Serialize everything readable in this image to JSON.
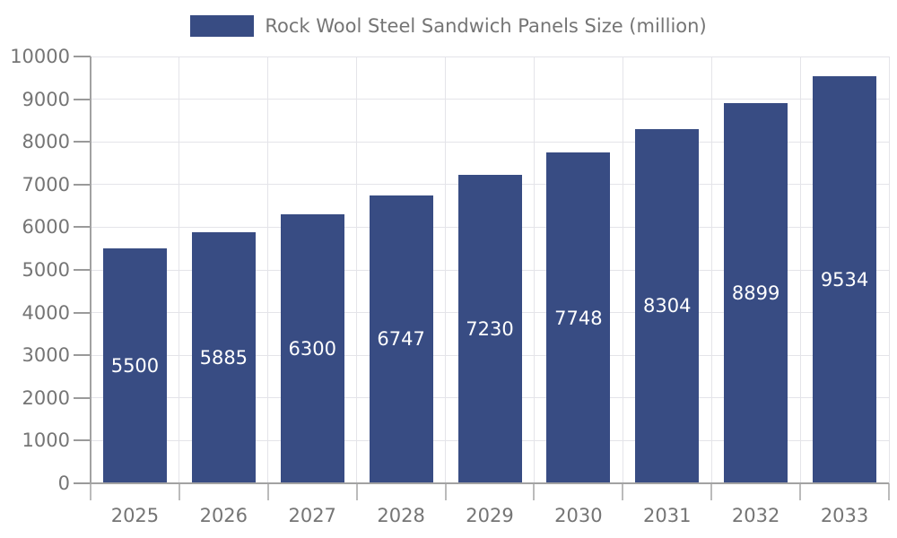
{
  "chart_data": {
    "type": "bar",
    "title": "",
    "legend_label": "Rock Wool Steel Sandwich Panels Size (million)",
    "legend_position": "top",
    "categories": [
      "2025",
      "2026",
      "2027",
      "2028",
      "2029",
      "2030",
      "2031",
      "2032",
      "2033"
    ],
    "values": [
      5500,
      5885,
      6300,
      6747,
      7230,
      7748,
      8304,
      8899,
      9534
    ],
    "xlabel": "",
    "ylabel": "",
    "ylim": [
      0,
      10000
    ],
    "yticks": [
      0,
      1000,
      2000,
      3000,
      4000,
      5000,
      6000,
      7000,
      8000,
      9000,
      10000
    ],
    "grid": true,
    "bar_labels_inside": true,
    "colors": {
      "bar": "#384c83",
      "bar_label": "#ffffff",
      "grid": "#e4e4e9",
      "axis": "#a2a2a2",
      "y_tick": "#9a9a9a",
      "x_tick": "#bbbbbb",
      "text": "#757575",
      "background": "#ffffff"
    }
  }
}
